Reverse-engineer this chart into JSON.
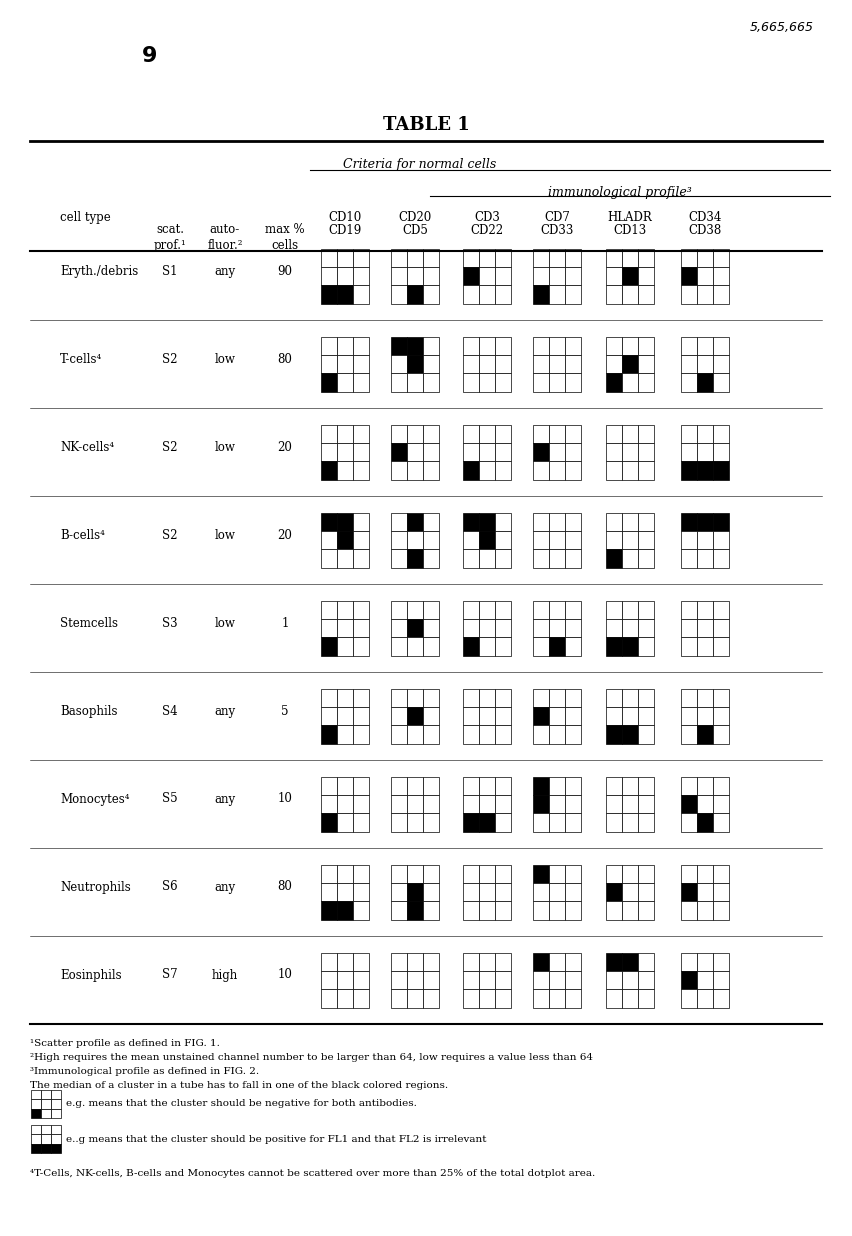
{
  "title": "TABLE 1",
  "subtitle1": "Criteria for normal cells",
  "subtitle2": "immunological profile³",
  "header_cols": [
    "cell type",
    "scat.\nprof.¹",
    "auto-\nfluor.²",
    "max %\ncells"
  ],
  "header_immune": [
    "CD10\nCD19",
    "CD20\nCD5",
    "CD3\nCD22",
    "CD7\nCD33",
    "HLADR\nCD13",
    "CD34\nCD38"
  ],
  "rows": [
    {
      "cell_type": "Eryth./debris",
      "scat": "S1",
      "fluor": "any",
      "max": "90",
      "grids": [
        [
          [
            0,
            0,
            0,
            0,
            0,
            0,
            1,
            1,
            0
          ]
        ],
        [
          [
            0,
            0,
            0,
            0,
            0,
            0,
            0,
            1,
            0
          ]
        ],
        [
          [
            0,
            0,
            0,
            1,
            0,
            0,
            0,
            0,
            0
          ]
        ],
        [
          [
            0,
            0,
            0,
            0,
            0,
            0,
            1,
            0,
            0
          ]
        ],
        [
          [
            0,
            0,
            0,
            0,
            1,
            0,
            0,
            0,
            0
          ]
        ],
        [
          [
            0,
            0,
            0,
            1,
            0,
            0,
            0,
            0,
            0
          ]
        ]
      ]
    },
    {
      "cell_type": "T-cells⁴",
      "scat": "S2",
      "fluor": "low",
      "max": "80",
      "grids": [
        [
          [
            0,
            0,
            0,
            0,
            0,
            0,
            1,
            0,
            0
          ]
        ],
        [
          [
            1,
            1,
            0,
            0,
            1,
            0,
            0,
            0,
            0
          ]
        ],
        [
          [
            0,
            0,
            0,
            0,
            0,
            0,
            0,
            0,
            0
          ]
        ],
        [
          [
            0,
            0,
            0,
            0,
            0,
            0,
            0,
            0,
            0
          ]
        ],
        [
          [
            0,
            0,
            0,
            0,
            1,
            0,
            1,
            0,
            0
          ]
        ],
        [
          [
            0,
            0,
            0,
            0,
            0,
            0,
            0,
            1,
            0
          ]
        ]
      ]
    },
    {
      "cell_type": "NK-cells⁴",
      "scat": "S2",
      "fluor": "low",
      "max": "20",
      "grids": [
        [
          [
            0,
            0,
            0,
            0,
            0,
            0,
            1,
            0,
            0
          ]
        ],
        [
          [
            0,
            0,
            0,
            1,
            0,
            0,
            0,
            0,
            0
          ]
        ],
        [
          [
            0,
            0,
            0,
            0,
            0,
            0,
            1,
            0,
            0
          ]
        ],
        [
          [
            0,
            0,
            0,
            1,
            0,
            0,
            0,
            0,
            0
          ]
        ],
        [
          [
            0,
            0,
            0,
            0,
            0,
            0,
            0,
            0,
            0
          ]
        ],
        [
          [
            0,
            0,
            0,
            0,
            0,
            0,
            1,
            1,
            1
          ]
        ]
      ]
    },
    {
      "cell_type": "B-cells⁴",
      "scat": "S2",
      "fluor": "low",
      "max": "20",
      "grids": [
        [
          [
            1,
            1,
            0,
            0,
            1,
            0,
            0,
            0,
            0
          ]
        ],
        [
          [
            0,
            1,
            0,
            0,
            0,
            0,
            0,
            1,
            0
          ]
        ],
        [
          [
            1,
            1,
            0,
            0,
            1,
            0,
            0,
            0,
            0
          ]
        ],
        [
          [
            0,
            0,
            0,
            0,
            0,
            0,
            0,
            0,
            0
          ]
        ],
        [
          [
            0,
            0,
            0,
            0,
            0,
            0,
            1,
            0,
            0
          ]
        ],
        [
          [
            1,
            1,
            1,
            0,
            0,
            0,
            0,
            0,
            0
          ]
        ]
      ]
    },
    {
      "cell_type": "Stemcells",
      "scat": "S3",
      "fluor": "low",
      "max": "1",
      "grids": [
        [
          [
            0,
            0,
            0,
            0,
            0,
            0,
            1,
            0,
            0
          ]
        ],
        [
          [
            0,
            0,
            0,
            0,
            1,
            0,
            0,
            0,
            0
          ]
        ],
        [
          [
            0,
            0,
            0,
            0,
            0,
            0,
            1,
            0,
            0
          ]
        ],
        [
          [
            0,
            0,
            0,
            0,
            0,
            0,
            0,
            1,
            0
          ]
        ],
        [
          [
            0,
            0,
            0,
            0,
            0,
            0,
            1,
            1,
            0
          ]
        ],
        [
          [
            0,
            0,
            0,
            0,
            0,
            0,
            0,
            0,
            0
          ]
        ]
      ]
    },
    {
      "cell_type": "Basophils",
      "scat": "S4",
      "fluor": "any",
      "max": "5",
      "grids": [
        [
          [
            0,
            0,
            0,
            0,
            0,
            0,
            1,
            0,
            0
          ]
        ],
        [
          [
            0,
            0,
            0,
            0,
            1,
            0,
            0,
            0,
            0
          ]
        ],
        [
          [
            0,
            0,
            0,
            0,
            0,
            0,
            0,
            0,
            0
          ]
        ],
        [
          [
            0,
            0,
            0,
            1,
            0,
            0,
            0,
            0,
            0
          ]
        ],
        [
          [
            0,
            0,
            0,
            0,
            0,
            0,
            1,
            1,
            0
          ]
        ],
        [
          [
            0,
            0,
            0,
            0,
            0,
            0,
            0,
            1,
            0
          ]
        ]
      ]
    },
    {
      "cell_type": "Monocytes⁴",
      "scat": "S5",
      "fluor": "any",
      "max": "10",
      "grids": [
        [
          [
            0,
            0,
            0,
            0,
            0,
            0,
            1,
            0,
            0
          ]
        ],
        [
          [
            0,
            0,
            0,
            0,
            0,
            0,
            0,
            0,
            0
          ]
        ],
        [
          [
            0,
            0,
            0,
            0,
            0,
            0,
            1,
            1,
            0
          ]
        ],
        [
          [
            1,
            0,
            0,
            1,
            0,
            0,
            0,
            0,
            0
          ]
        ],
        [
          [
            0,
            0,
            0,
            0,
            0,
            0,
            0,
            0,
            0
          ]
        ],
        [
          [
            0,
            0,
            0,
            1,
            0,
            0,
            0,
            1,
            0
          ]
        ]
      ]
    },
    {
      "cell_type": "Neutrophils",
      "scat": "S6",
      "fluor": "any",
      "max": "80",
      "grids": [
        [
          [
            0,
            0,
            0,
            0,
            0,
            0,
            1,
            1,
            0
          ]
        ],
        [
          [
            0,
            0,
            0,
            0,
            1,
            0,
            0,
            1,
            0
          ]
        ],
        [
          [
            0,
            0,
            0,
            0,
            0,
            0,
            0,
            0,
            0
          ]
        ],
        [
          [
            1,
            0,
            0,
            0,
            0,
            0,
            0,
            0,
            0
          ]
        ],
        [
          [
            0,
            0,
            0,
            1,
            0,
            0,
            0,
            0,
            0
          ]
        ],
        [
          [
            0,
            0,
            0,
            1,
            0,
            0,
            0,
            0,
            0
          ]
        ]
      ]
    },
    {
      "cell_type": "Eosinphils",
      "scat": "S7",
      "fluor": "high",
      "max": "10",
      "grids": [
        [
          [
            0,
            0,
            0,
            0,
            0,
            0,
            0,
            0,
            0
          ]
        ],
        [
          [
            0,
            0,
            0,
            0,
            0,
            0,
            0,
            0,
            0
          ]
        ],
        [
          [
            0,
            0,
            0,
            0,
            0,
            0,
            0,
            0,
            0
          ]
        ],
        [
          [
            1,
            0,
            0,
            0,
            0,
            0,
            0,
            0,
            0
          ]
        ],
        [
          [
            1,
            1,
            0,
            0,
            0,
            0,
            0,
            0,
            0
          ]
        ],
        [
          [
            0,
            0,
            0,
            1,
            0,
            0,
            0,
            0,
            0
          ]
        ]
      ]
    }
  ],
  "footnotes": [
    "¹Scatter profile as defined in FIG. 1.",
    "²High requires the mean unstained channel number to be larger than 64, low requires a value less than 64",
    "³Immunological profile as defined in FIG. 2.",
    "The median of a cluster in a tube has to fall in one of the black colored regions.",
    "e.g. means that the cluster should be negative for both antibodies.",
    "e..g means that the cluster should be positive for FL1 and that FL2 is irrelevant",
    "⁴T-Cells, NK-cells, B-cells and Monocytes cannot be scattered over more than 25% of the total dotplot area."
  ],
  "page_number": "9",
  "page_ref": "5,665,665"
}
